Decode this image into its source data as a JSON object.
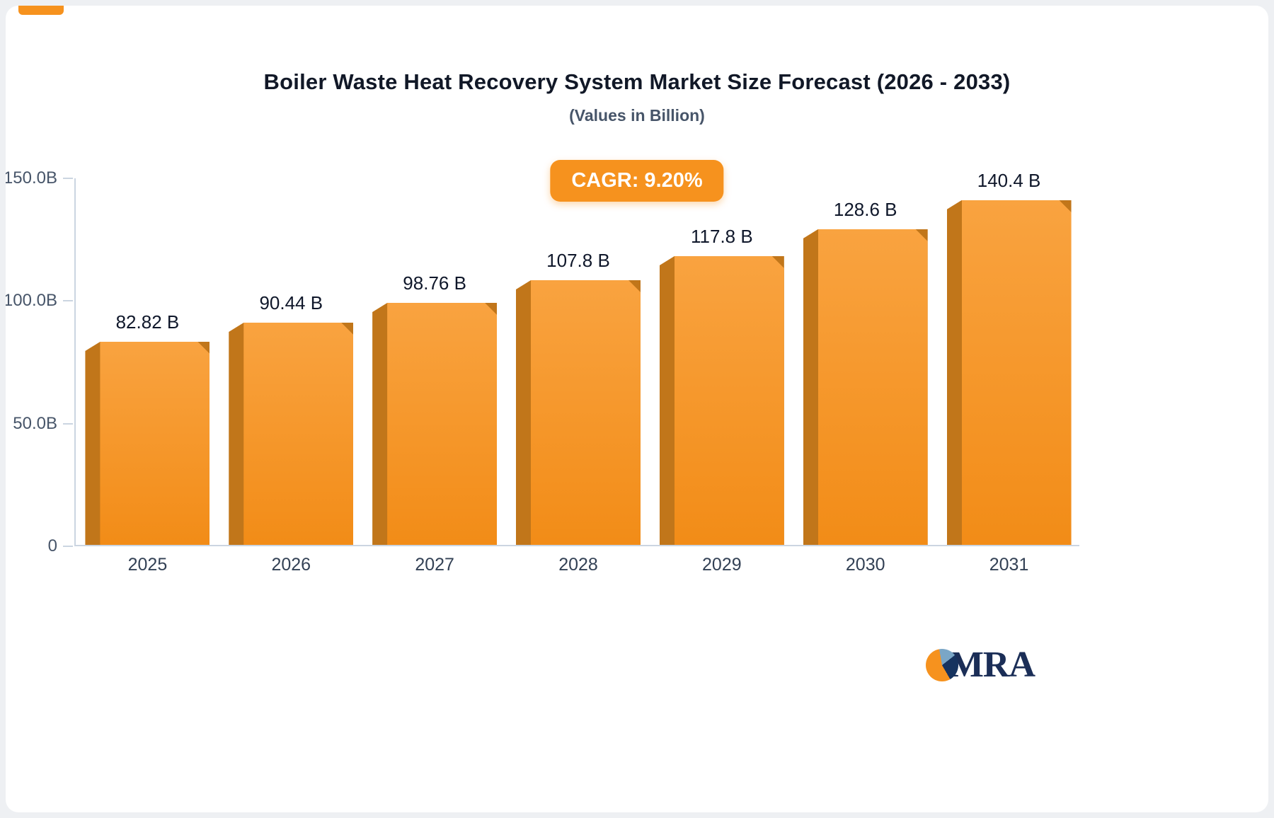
{
  "header": {
    "title": "Boiler Waste Heat Recovery System Market Size Forecast (2026 - 2033)",
    "subtitle": "(Values in Billion)",
    "cagr_badge": "CAGR: 9.20%"
  },
  "chart_data": {
    "type": "bar",
    "categories": [
      "2025",
      "2026",
      "2027",
      "2028",
      "2029",
      "2030",
      "2031"
    ],
    "values": [
      82.82,
      90.44,
      98.76,
      107.8,
      117.8,
      128.6,
      140.4
    ],
    "value_labels": [
      "82.82 B",
      "90.44 B",
      "98.76 B",
      "107.8 B",
      "117.8 B",
      "128.6 B",
      "140.4 B"
    ],
    "title": "Boiler Waste Heat Recovery System Market Size Forecast (2026 - 2033)",
    "subtitle": "(Values in Billion)",
    "xlabel": "",
    "ylabel": "",
    "ylim": [
      0,
      150
    ],
    "yticks": [
      {
        "value": 0,
        "label": "0"
      },
      {
        "value": 50,
        "label": "50.0B"
      },
      {
        "value": 100,
        "label": "100.0B"
      },
      {
        "value": 150,
        "label": "150.0B"
      }
    ],
    "grid": false,
    "legend": false,
    "bar_color": "#f7941e",
    "bar_side_color": "#c1761a",
    "annotation": "CAGR: 9.20%"
  },
  "colors": {
    "accent_orange": "#f6921e",
    "title_text": "#111827",
    "subtitle_text": "#475569",
    "axis_line": "#cbd5e1",
    "logo_navy": "#1b2e57"
  },
  "logo": {
    "text": "MRA"
  }
}
